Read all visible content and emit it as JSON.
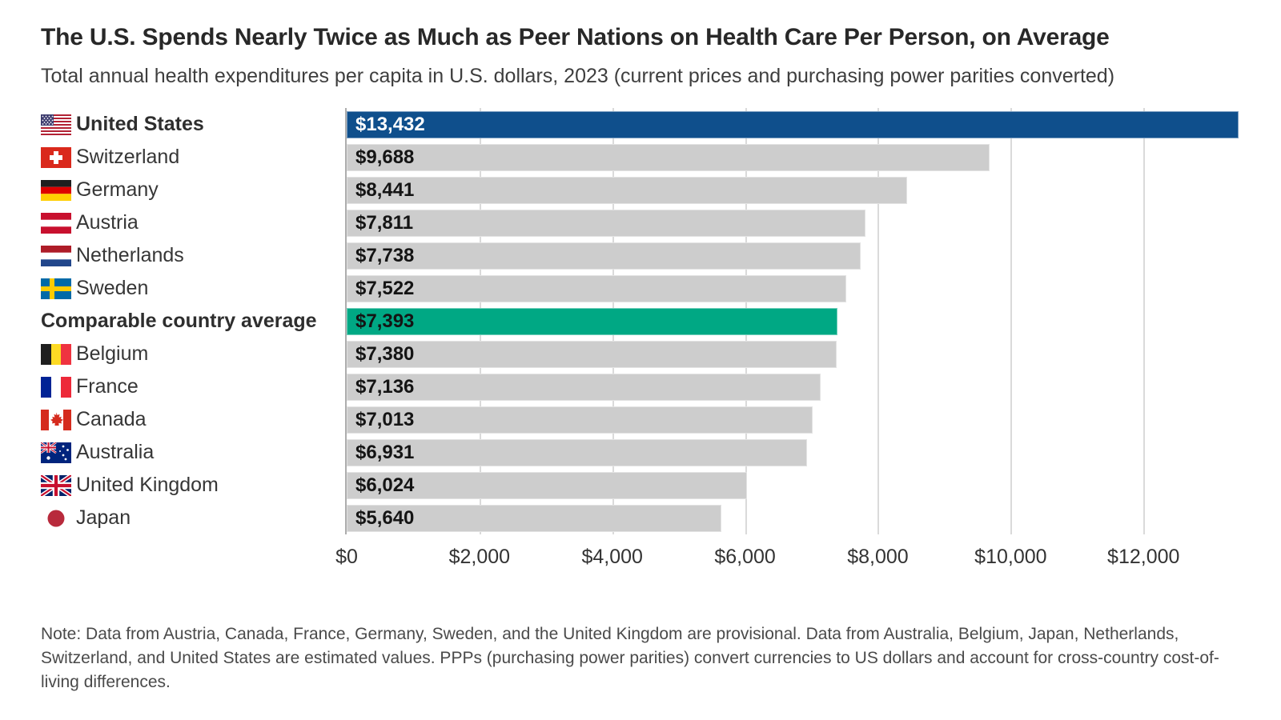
{
  "chart_data": {
    "type": "bar",
    "orientation": "horizontal",
    "title": "The U.S. Spends Nearly Twice as Much as Peer Nations on Health Care Per Person, on Average",
    "subtitle": "Total annual health expenditures per capita in U.S. dollars, 2023 (current prices and purchasing power parities converted)",
    "note": "Note: Data from Austria, Canada, France, Germany, Sweden, and the United Kingdom are provisional. Data from Australia, Belgium, Japan, Netherlands, Switzerland, and United States are estimated values. PPPs (purchasing power parities) convert currencies to US dollars and account for cross-country cost-of-living differences.",
    "xlim": [
      0,
      13432
    ],
    "grid": "vertical",
    "legend": "none",
    "x_ticks": [
      {
        "label": "$0",
        "value": 0
      },
      {
        "label": "$2,000",
        "value": 2000
      },
      {
        "label": "$4,000",
        "value": 4000
      },
      {
        "label": "$6,000",
        "value": 6000
      },
      {
        "label": "$8,000",
        "value": 8000
      },
      {
        "label": "$10,000",
        "value": 10000
      },
      {
        "label": "$12,000",
        "value": 12000
      }
    ],
    "colors": {
      "us_bar": "#0F4F8C",
      "average_bar": "#00A884",
      "default_bar": "#CDCDCD",
      "value_text_dark": "#141414",
      "value_text_light": "#FFFFFF",
      "gridline": "#DADADA",
      "axis_line": "#ADADAD"
    },
    "categories": [
      "United States",
      "Switzerland",
      "Germany",
      "Austria",
      "Netherlands",
      "Sweden",
      "Comparable country average",
      "Belgium",
      "France",
      "Canada",
      "Australia",
      "United Kingdom",
      "Japan"
    ],
    "values": [
      13432,
      9688,
      8441,
      7811,
      7738,
      7522,
      7393,
      7380,
      7136,
      7013,
      6931,
      6024,
      5640
    ],
    "rows": [
      {
        "category": "United States",
        "value": 13432,
        "value_label": "$13,432",
        "flag": "us",
        "emphasis": true,
        "style": "us"
      },
      {
        "category": "Switzerland",
        "value": 9688,
        "value_label": "$9,688",
        "flag": "ch",
        "emphasis": false,
        "style": "default"
      },
      {
        "category": "Germany",
        "value": 8441,
        "value_label": "$8,441",
        "flag": "de",
        "emphasis": false,
        "style": "default"
      },
      {
        "category": "Austria",
        "value": 7811,
        "value_label": "$7,811",
        "flag": "at",
        "emphasis": false,
        "style": "default"
      },
      {
        "category": "Netherlands",
        "value": 7738,
        "value_label": "$7,738",
        "flag": "nl",
        "emphasis": false,
        "style": "default"
      },
      {
        "category": "Sweden",
        "value": 7522,
        "value_label": "$7,522",
        "flag": "se",
        "emphasis": false,
        "style": "default"
      },
      {
        "category": "Comparable country average",
        "value": 7393,
        "value_label": "$7,393",
        "flag": null,
        "emphasis": true,
        "style": "average"
      },
      {
        "category": "Belgium",
        "value": 7380,
        "value_label": "$7,380",
        "flag": "be",
        "emphasis": false,
        "style": "default"
      },
      {
        "category": "France",
        "value": 7136,
        "value_label": "$7,136",
        "flag": "fr",
        "emphasis": false,
        "style": "default"
      },
      {
        "category": "Canada",
        "value": 7013,
        "value_label": "$7,013",
        "flag": "ca",
        "emphasis": false,
        "style": "default"
      },
      {
        "category": "Australia",
        "value": 6931,
        "value_label": "$6,931",
        "flag": "au",
        "emphasis": false,
        "style": "default"
      },
      {
        "category": "United Kingdom",
        "value": 6024,
        "value_label": "$6,024",
        "flag": "gb",
        "emphasis": false,
        "style": "default"
      },
      {
        "category": "Japan",
        "value": 5640,
        "value_label": "$5,640",
        "flag": "jp",
        "emphasis": false,
        "style": "default"
      }
    ]
  }
}
